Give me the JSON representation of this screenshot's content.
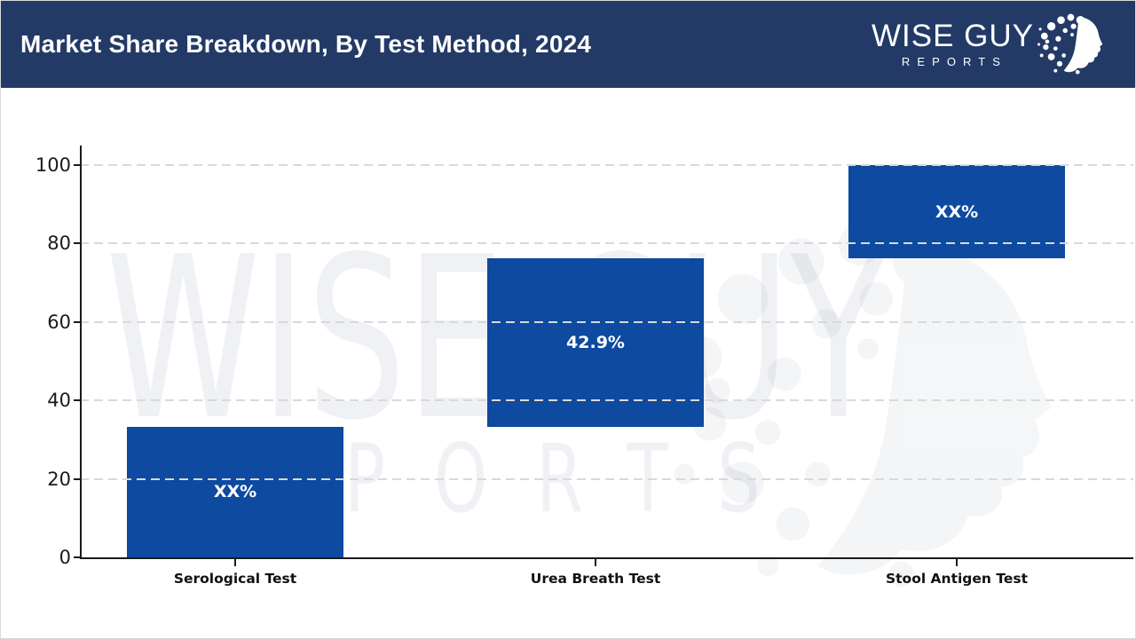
{
  "header": {
    "title": "Market Share Breakdown, By Test Method, 2024",
    "logo": {
      "line1": "WISE GUY",
      "line2": "REPORTS"
    }
  },
  "watermark": {
    "line1": "WISE GUY",
    "line2": "REPORTS"
  },
  "chart_data": {
    "type": "bar",
    "subtype": "floating-waterfall",
    "title": "Market Share Breakdown, By Test Method, 2024",
    "categories": [
      "Serological Test",
      "Urea Breath Test",
      "Stool Antigen Test"
    ],
    "series": [
      {
        "name": "Market Share (%)",
        "segments": [
          {
            "category": "Serological Test",
            "start": 0,
            "end": 33.3,
            "label": "XX%"
          },
          {
            "category": "Urea Breath Test",
            "start": 33.3,
            "end": 76.2,
            "label": "42.9%"
          },
          {
            "category": "Stool Antigen Test",
            "start": 76.2,
            "end": 100,
            "label": "XX%"
          }
        ]
      }
    ],
    "yticks": [
      0,
      20,
      40,
      60,
      80,
      100
    ],
    "ylim": [
      0,
      105
    ],
    "xlabel": "",
    "ylabel": "",
    "grid": "horizontal-dashed-above-bars",
    "legend": "none",
    "bar_color": "#0d4aa0",
    "bar_label_color": "#ffffff"
  },
  "colors": {
    "header_bg": "#233a66",
    "bar": "#0d4aa0",
    "grid": "#d9d9d9",
    "axis": "#1a1a1a",
    "frame": "#d9d9d9",
    "title_text": "#ffffff",
    "watermark": "#f0f1f4"
  }
}
